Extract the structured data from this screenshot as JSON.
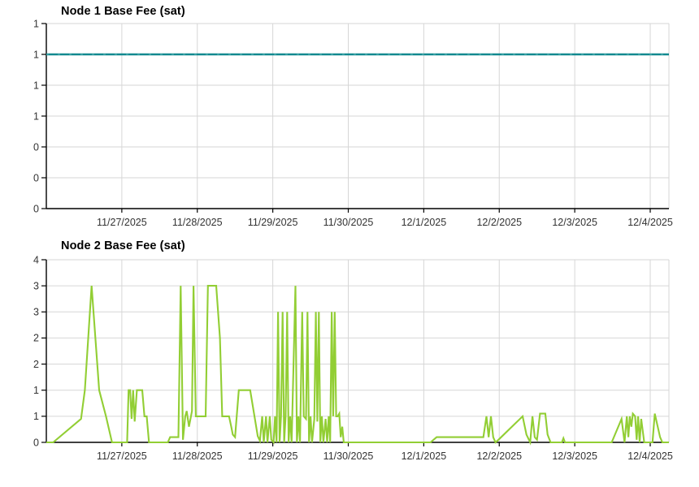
{
  "styles": {
    "background": "#FFFFFF",
    "grid_color": "#D6D6D6",
    "axis_color": "#000000",
    "label_color": "#333333",
    "title_color": "#000000"
  },
  "x_axis": {
    "tick_labels": [
      "11/27/2025",
      "11/28/2025",
      "11/29/2025",
      "11/30/2025",
      "12/1/2025",
      "12/2/2025",
      "12/3/2025",
      "12/4/2025"
    ],
    "tick_days": [
      1,
      2,
      3,
      4,
      5,
      6,
      7,
      8
    ],
    "max_day": 8.248
  },
  "chart_data": [
    {
      "type": "line",
      "title": "Node 1 Base Fee (sat)",
      "line_color": "#12898F",
      "marker_color": "#55B2B6",
      "ylabel": "",
      "ylim": [
        0,
        1.2
      ],
      "grid": true,
      "legend": false,
      "y_ticks": [
        {
          "v": 1.2,
          "label": "1"
        },
        {
          "v": 1.0,
          "label": "1"
        },
        {
          "v": 0.8,
          "label": "1"
        },
        {
          "v": 0.6,
          "label": "1"
        },
        {
          "v": 0.4,
          "label": "0"
        },
        {
          "v": 0.2,
          "label": "0"
        },
        {
          "v": 0.0,
          "label": "0"
        }
      ],
      "series": [
        [
          0,
          1
        ],
        [
          8.248,
          1
        ]
      ]
    },
    {
      "type": "line",
      "title": "Node 2 Base Fee (sat)",
      "line_color": "#92CE34",
      "marker_color": "",
      "ylabel": "",
      "ylim": [
        0,
        3.5
      ],
      "grid": true,
      "legend": false,
      "y_ticks": [
        {
          "v": 3.5,
          "label": "4"
        },
        {
          "v": 3.0,
          "label": "3"
        },
        {
          "v": 2.5,
          "label": "3"
        },
        {
          "v": 2.0,
          "label": "2"
        },
        {
          "v": 1.5,
          "label": "2"
        },
        {
          "v": 1.0,
          "label": "1"
        },
        {
          "v": 0.5,
          "label": "1"
        },
        {
          "v": 0.0,
          "label": "0"
        }
      ],
      "series": [
        [
          0,
          0
        ],
        [
          0.09,
          0
        ],
        [
          0.46,
          0.45
        ],
        [
          0.51,
          1
        ],
        [
          0.6,
          3
        ],
        [
          0.7,
          1
        ],
        [
          0.79,
          0.5
        ],
        [
          0.87,
          0
        ],
        [
          1.07,
          0
        ],
        [
          1.09,
          1
        ],
        [
          1.11,
          1
        ],
        [
          1.13,
          0.45
        ],
        [
          1.15,
          1
        ],
        [
          1.17,
          0.4
        ],
        [
          1.2,
          1
        ],
        [
          1.27,
          1
        ],
        [
          1.3,
          0.5
        ],
        [
          1.33,
          0.5
        ],
        [
          1.36,
          0
        ],
        [
          1.61,
          0
        ],
        [
          1.64,
          0.1
        ],
        [
          1.75,
          0.1
        ],
        [
          1.78,
          3
        ],
        [
          1.81,
          0.05
        ],
        [
          1.84,
          0.5
        ],
        [
          1.86,
          0.6
        ],
        [
          1.89,
          0.3
        ],
        [
          1.93,
          0.6
        ],
        [
          1.95,
          3
        ],
        [
          1.98,
          0.5
        ],
        [
          2.11,
          0.5
        ],
        [
          2.14,
          3
        ],
        [
          2.25,
          3
        ],
        [
          2.3,
          2
        ],
        [
          2.33,
          0.5
        ],
        [
          2.42,
          0.5
        ],
        [
          2.45,
          0.3
        ],
        [
          2.47,
          0.15
        ],
        [
          2.5,
          0.1
        ],
        [
          2.55,
          1
        ],
        [
          2.7,
          1
        ],
        [
          2.8,
          0.12
        ],
        [
          2.83,
          0.03
        ],
        [
          2.86,
          0.5
        ],
        [
          2.88,
          0
        ],
        [
          2.91,
          0.5
        ],
        [
          2.93,
          0
        ],
        [
          2.96,
          0.5
        ],
        [
          2.98,
          0.05
        ],
        [
          3.01,
          0
        ],
        [
          3.03,
          0.5
        ],
        [
          3.05,
          0
        ],
        [
          3.07,
          2.5
        ],
        [
          3.09,
          0
        ],
        [
          3.11,
          0.5
        ],
        [
          3.13,
          2.5
        ],
        [
          3.15,
          0
        ],
        [
          3.17,
          0.5
        ],
        [
          3.19,
          2.5
        ],
        [
          3.21,
          0
        ],
        [
          3.23,
          0.5
        ],
        [
          3.25,
          0
        ],
        [
          3.3,
          3
        ],
        [
          3.32,
          0
        ],
        [
          3.34,
          0.5
        ],
        [
          3.36,
          0
        ],
        [
          3.39,
          2.5
        ],
        [
          3.41,
          0.5
        ],
        [
          3.44,
          0.45
        ],
        [
          3.46,
          2.5
        ],
        [
          3.48,
          0
        ],
        [
          3.5,
          0.5
        ],
        [
          3.52,
          0
        ],
        [
          3.55,
          0.45
        ],
        [
          3.57,
          2.5
        ],
        [
          3.59,
          0.4
        ],
        [
          3.61,
          2.5
        ],
        [
          3.63,
          0
        ],
        [
          3.65,
          0.5
        ],
        [
          3.67,
          0
        ],
        [
          3.7,
          0.45
        ],
        [
          3.72,
          0
        ],
        [
          3.74,
          0.5
        ],
        [
          3.76,
          0
        ],
        [
          3.78,
          2.5
        ],
        [
          3.8,
          0.5
        ],
        [
          3.82,
          2.5
        ],
        [
          3.84,
          0.5
        ],
        [
          3.86,
          0.5
        ],
        [
          3.88,
          0.55
        ],
        [
          3.9,
          0.1
        ],
        [
          3.92,
          0.3
        ],
        [
          3.94,
          0
        ],
        [
          5.09,
          0
        ],
        [
          5.17,
          0.1
        ],
        [
          5.79,
          0.1
        ],
        [
          5.83,
          0.5
        ],
        [
          5.86,
          0.1
        ],
        [
          5.89,
          0.5
        ],
        [
          5.92,
          0.1
        ],
        [
          5.95,
          0
        ],
        [
          5.99,
          0.05
        ],
        [
          6.31,
          0.5
        ],
        [
          6.36,
          0.15
        ],
        [
          6.41,
          0
        ],
        [
          6.44,
          0.5
        ],
        [
          6.47,
          0.1
        ],
        [
          6.5,
          0.05
        ],
        [
          6.54,
          0.55
        ],
        [
          6.61,
          0.55
        ],
        [
          6.64,
          0.15
        ],
        [
          6.68,
          0
        ],
        [
          6.83,
          0
        ],
        [
          6.85,
          0.08
        ],
        [
          6.87,
          0
        ],
        [
          7.46,
          0
        ],
        [
          7.49,
          0
        ],
        [
          7.62,
          0.45
        ],
        [
          7.66,
          0
        ],
        [
          7.69,
          0.5
        ],
        [
          7.71,
          0.1
        ],
        [
          7.73,
          0.5
        ],
        [
          7.75,
          0.3
        ],
        [
          7.77,
          0.55
        ],
        [
          7.8,
          0.5
        ],
        [
          7.82,
          0.05
        ],
        [
          7.84,
          0.5
        ],
        [
          7.86,
          0
        ],
        [
          7.88,
          0.45
        ],
        [
          7.92,
          0
        ],
        [
          8.0,
          0
        ],
        [
          8.03,
          0
        ],
        [
          8.06,
          0.55
        ],
        [
          8.13,
          0.1
        ],
        [
          8.16,
          0
        ],
        [
          8.248,
          0
        ]
      ]
    }
  ]
}
